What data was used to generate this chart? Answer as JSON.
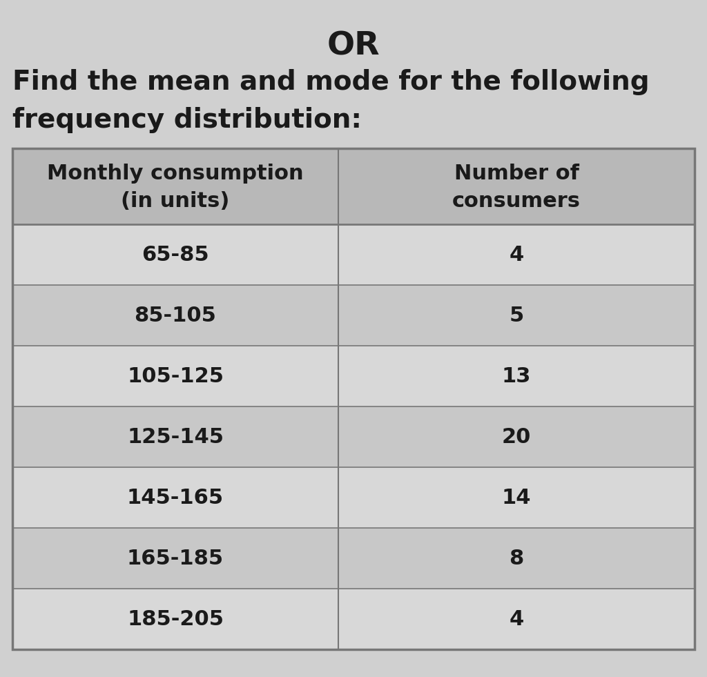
{
  "title_or": "OR",
  "subtitle_line1": "Find the mean and mode for the following",
  "subtitle_line2": "frequency distribution:",
  "col1_header_line1": "Monthly consumption",
  "col1_header_line2": "(in units)",
  "col2_header_line1": "Number of",
  "col2_header_line2": "consumers",
  "rows": [
    [
      "65-85",
      "4"
    ],
    [
      "85-105",
      "5"
    ],
    [
      "105-125",
      "13"
    ],
    [
      "125-145",
      "20"
    ],
    [
      "145-165",
      "14"
    ],
    [
      "165-185",
      "8"
    ],
    [
      "185-205",
      "4"
    ]
  ],
  "header_bg": "#b8b8b8",
  "row_bg_light": "#d8d8d8",
  "row_bg_dark": "#c8c8c8",
  "text_color": "#1a1a1a",
  "table_border_color": "#777777",
  "fig_bg": "#d0d0d0"
}
